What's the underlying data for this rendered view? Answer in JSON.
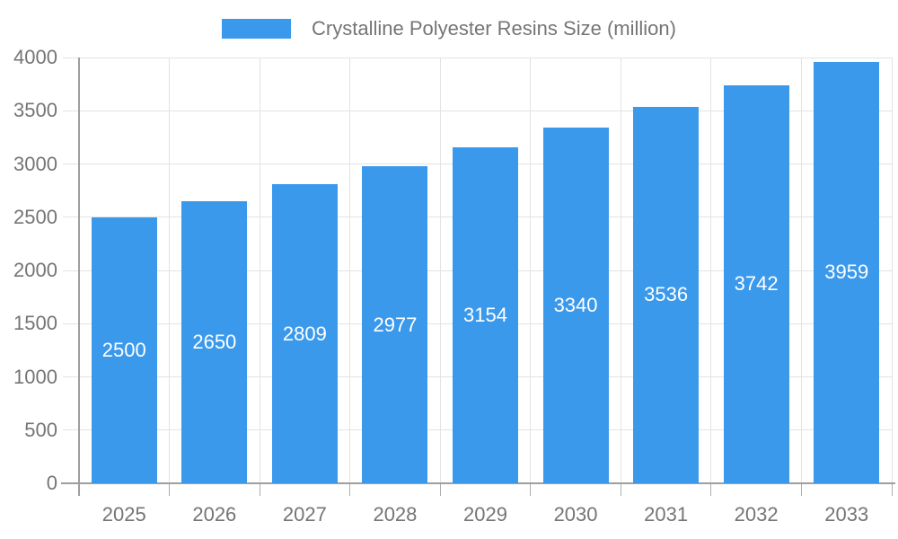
{
  "chart_data": {
    "type": "bar",
    "title": "Crystalline Polyester Resins Size (million)",
    "legend": [
      "Crystalline Polyester Resins Size (million)"
    ],
    "legend_position": "top",
    "categories": [
      "2025",
      "2026",
      "2027",
      "2028",
      "2029",
      "2030",
      "2031",
      "2032",
      "2033"
    ],
    "series": [
      {
        "name": "Crystalline Polyester Resins Size (million)",
        "values": [
          2500,
          2650,
          2809,
          2977,
          3154,
          3340,
          3536,
          3742,
          3959
        ]
      }
    ],
    "bar_value_labels": [
      2500,
      2650,
      2809,
      2977,
      3154,
      3340,
      3536,
      3742,
      3959
    ],
    "xlabel": "",
    "ylabel": "",
    "ylim": [
      0,
      4000
    ],
    "yticks": [
      0,
      500,
      1000,
      1500,
      2000,
      2500,
      3000,
      3500,
      4000
    ],
    "grid": true
  },
  "colors": {
    "bar": "#3B99EC",
    "grid": "#E3E3E3",
    "tick": "#ADADAD",
    "axis": "#9E9E9E",
    "text": "#757575",
    "bar_label": "#FFFFFF",
    "background": "#FFFFFF"
  }
}
